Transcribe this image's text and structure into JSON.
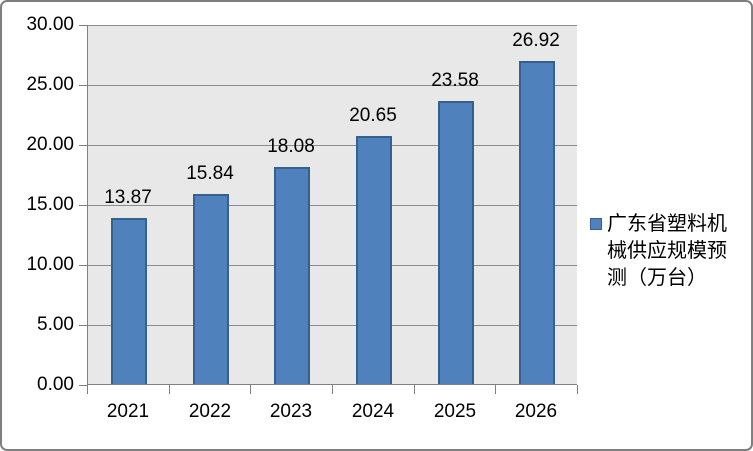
{
  "chart_data": {
    "type": "bar",
    "title": "",
    "categories": [
      "2021",
      "2022",
      "2023",
      "2024",
      "2025",
      "2026"
    ],
    "series": [
      {
        "name": "广东省塑料机械供应规模预测（万台）",
        "values": [
          13.87,
          15.84,
          18.08,
          20.65,
          23.58,
          26.92
        ],
        "data_labels": [
          "13.87",
          "15.84",
          "18.08",
          "20.65",
          "23.58",
          "26.92"
        ],
        "color": "#4F81BD"
      }
    ],
    "xlabel": "",
    "ylabel": "",
    "ylim": [
      0,
      30
    ],
    "ytick_step": 5,
    "ytick_labels": [
      "0.00",
      "5.00",
      "10.00",
      "15.00",
      "20.00",
      "25.00",
      "30.00"
    ],
    "grid": true,
    "data_labels_visible": true,
    "legend_position": "right"
  },
  "legend": {
    "label": "广东省塑料机械供应规模预测（万台）"
  },
  "colors": {
    "bar_fill": "#4F81BD",
    "bar_border": "#36618E",
    "legend_swatch": "#4F81BD",
    "plot_background": "#E8E8E8",
    "gridline": "#8C8C8C",
    "axis": "#808080",
    "chart_border": "#7F7F7F",
    "text": "#000000",
    "background": "#FFFFFF"
  }
}
